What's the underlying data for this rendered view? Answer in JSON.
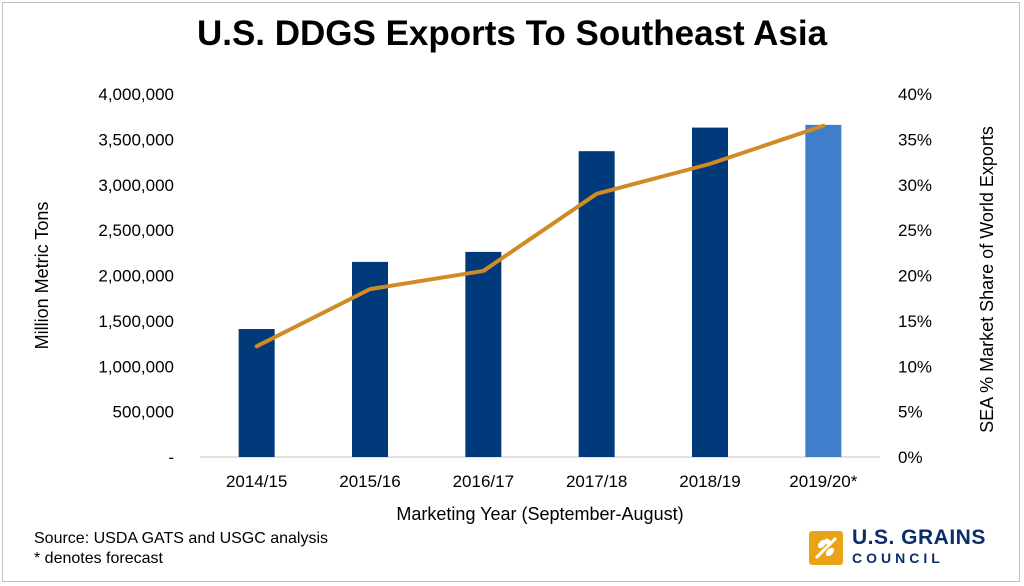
{
  "chart_data": {
    "type": "bar",
    "title": "U.S. DDGS Exports To Southeast Asia",
    "xlabel": "Marketing Year (September-August)",
    "ylabel": "Million Metric Tons",
    "y2label": "SEA % Market Share of World Exports",
    "categories": [
      "2014/15",
      "2015/16",
      "2016/17",
      "2017/18",
      "2018/19",
      "2019/20*"
    ],
    "ylim": [
      0,
      4000000
    ],
    "y2lim": [
      0,
      0.4
    ],
    "yticks": [
      "-",
      "500,000",
      "1,000,000",
      "1,500,000",
      "2,000,000",
      "2,500,000",
      "3,000,000",
      "3,500,000",
      "4,000,000"
    ],
    "y2ticks": [
      "0%",
      "5%",
      "10%",
      "15%",
      "20%",
      "25%",
      "30%",
      "35%",
      "40%"
    ],
    "bar_values": [
      1410000,
      2150000,
      2260000,
      3370000,
      3630000,
      3660000
    ],
    "line_values": [
      0.122,
      0.185,
      0.205,
      0.29,
      0.323,
      0.365
    ],
    "forecast_index": 5,
    "colors": {
      "bar": "#003a7a",
      "bar_forecast": "#3f7ecb",
      "line": "#d08b25",
      "axis": "#d9d9d9"
    },
    "grid": false,
    "legend": "none"
  },
  "footer": {
    "source": "Source: USDA GATS and USGC analysis",
    "note": "* denotes forecast"
  },
  "logo": {
    "line1": "U.S. GRAINS",
    "line2": "COUNCIL",
    "icon": "grain-stalk-icon"
  }
}
